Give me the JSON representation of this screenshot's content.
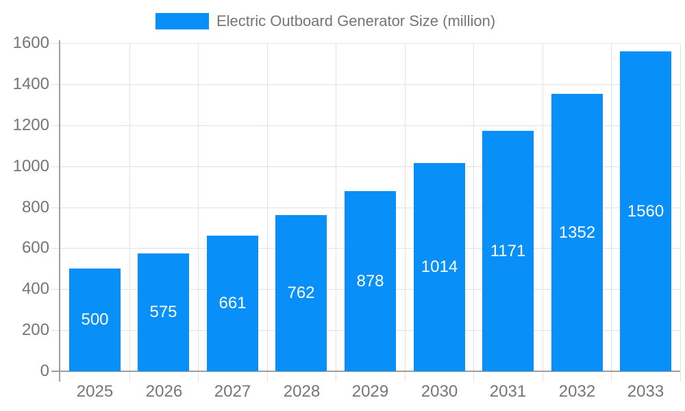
{
  "chart_data": {
    "type": "bar",
    "title": "Electric Outboard Generator Size (million)",
    "categories": [
      "2025",
      "2026",
      "2027",
      "2028",
      "2029",
      "2030",
      "2031",
      "2032",
      "2033"
    ],
    "series": [
      {
        "name": "Electric Outboard Generator Size (million)",
        "values": [
          500,
          575,
          661,
          762,
          878,
          1014,
          1171,
          1352,
          1560
        ]
      }
    ],
    "xlabel": "",
    "ylabel": "",
    "ylim": [
      0,
      1600
    ],
    "ytick_step": 200,
    "yticks": [
      0,
      200,
      400,
      600,
      800,
      1000,
      1200,
      1400,
      1600
    ],
    "grid": true,
    "legend_position": "top",
    "bar_value_labels_visible": true,
    "colors": {
      "bar": "#0890F8",
      "grid": "#e1e1e1",
      "axis": "#9e9e9e",
      "text": "#757575",
      "bar_label": "#ffffff",
      "background": "#ffffff"
    }
  }
}
